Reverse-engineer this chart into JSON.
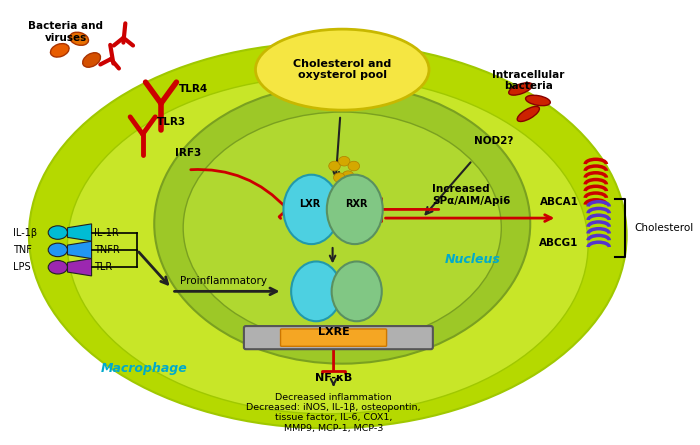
{
  "bg_color": "#ffffff",
  "macrophage_outer_color": "#b5d900",
  "macrophage_inner_color": "#c8e628",
  "nucleus_outer_color": "#9dc827",
  "nucleus_inner_color": "#b0d830",
  "cholesterol_pool_color": "#f5e642",
  "lxr_color": "#4dd0e1",
  "rxr_color": "#81c784",
  "dna_bar_color": "#f5a623",
  "dna_stripe_color": "#b0b0b0",
  "macrophage_label": "Macrophage",
  "nucleus_label": "Nucleus",
  "cholesterol_label": "Cholesterol and\noxysterol pool",
  "bacteria_label": "Bacteria and\nviruses",
  "intracellular_label": "Intracellular\nbacteria",
  "nod2_label": "NOD2?",
  "irf3_label": "IRF3",
  "tlr4_label": "TLR4",
  "tlr3_label": "TLR3",
  "lxr_label": "LXR",
  "rxr_label": "RXR",
  "lxre_label": "LXRE",
  "abca1_label": "ABCA1",
  "abcg1_label": "ABCG1",
  "cholesterol_out_label": "Cholesterol",
  "nfkb_label": "NF-κB",
  "proinflammatory_label": "Proinflammatory",
  "increased_label": "Increased\nSPα/AIM/Api6",
  "il1b_label": "IL-1β",
  "tnf_label": "TNF",
  "lps_label": "LPS",
  "il1r_label": "IL-1R",
  "tnfr_label": "TNFR",
  "tlr_label": "TLR",
  "decreased_label": "Decreased inflammation\nDecreased: iNOS, IL-1β, osteopontin,\ntissue factor, IL-6, COX1,\nMMP9, MCP-1, MCP-3",
  "red_color": "#cc0000",
  "dark_arrow_color": "#222222",
  "cyan_label_color": "#00aacc",
  "text_color": "#000000",
  "bacteria_colors": [
    "#e85c00",
    "#e87000",
    "#d45000"
  ],
  "receptor_colors": [
    "#00bcd4",
    "#2196f3",
    "#9c27b0"
  ],
  "abca1_coil_color": "#cc0000",
  "abcg1_coil_color": "#5533cc"
}
